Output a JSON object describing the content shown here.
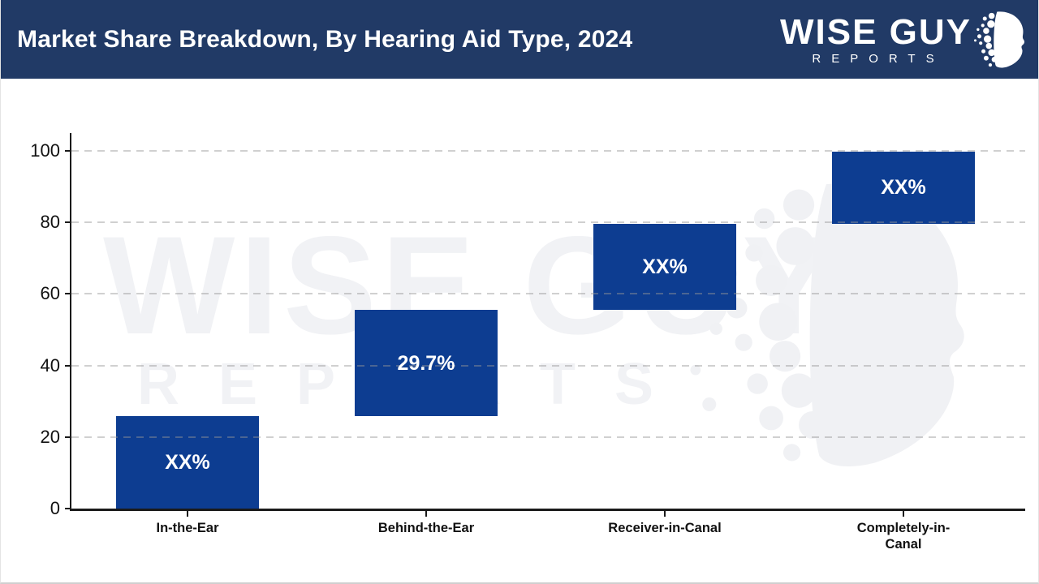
{
  "header": {
    "title": "Market Share Breakdown, By Hearing Aid Type, 2024",
    "logo": {
      "line1": "WISE GUY",
      "line2": "REPORTS"
    },
    "bg_color": "#213a66"
  },
  "watermark": {
    "line1": "WISE GUY",
    "line2": "REPORTS"
  },
  "chart_data": {
    "type": "bar",
    "variant": "floating-range-waterfall",
    "title": "Market Share Breakdown, By Hearing Aid Type, 2024",
    "categories": [
      "In-the-Ear",
      "Behind-the-Ear",
      "Receiver-in-Canal",
      "Completely-in-Canal"
    ],
    "series": [
      {
        "name": "Market share (%)",
        "segments": [
          {
            "category": "In-the-Ear",
            "start": 0,
            "end": 25.8,
            "label": "XX%"
          },
          {
            "category": "Behind-the-Ear",
            "start": 25.8,
            "end": 55.5,
            "label": "29.7%",
            "value": 29.7
          },
          {
            "category": "Receiver-in-Canal",
            "start": 55.6,
            "end": 79.7,
            "label": "XX%"
          },
          {
            "category": "Completely-in-Canal",
            "start": 79.7,
            "end": 99.8,
            "label": "XX%"
          }
        ]
      }
    ],
    "yticks": [
      0,
      20,
      40,
      60,
      80,
      100
    ],
    "ylim": [
      0,
      105
    ],
    "xlabel": "",
    "ylabel": "",
    "grid": "horizontal-dashed",
    "legend": "none",
    "bar_color": "#0d3d91",
    "bar_label_color": "#ffffff",
    "axis_color": "#1a1a1a"
  }
}
